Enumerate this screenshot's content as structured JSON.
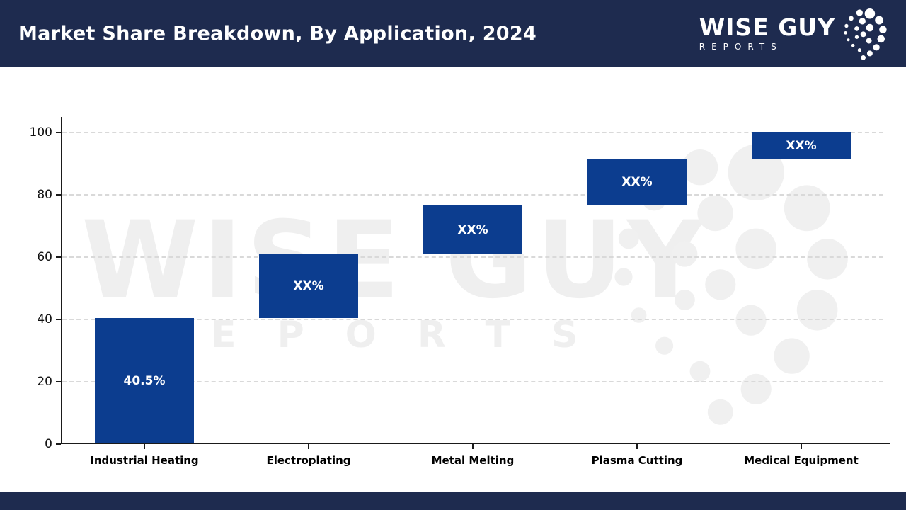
{
  "header": {
    "title": "Market Share Breakdown, By Application, 2024",
    "logo": {
      "line1": "WISE GUY",
      "line2": "REPORTS"
    }
  },
  "watermark": {
    "line1": "WISE GUY",
    "line2": "REPORTS"
  },
  "colors": {
    "navy": "#1e2b4f",
    "bar-blue": "#0c3d8f",
    "grid": "#d9d9d9",
    "axis": "#1a1a1a",
    "watermark-gray": "#efefef",
    "bar-label": "#ffffff"
  },
  "chart_data": {
    "type": "bar",
    "subtype": "waterfall",
    "title": "Market Share Breakdown, By Application, 2024",
    "categories": [
      "Industrial Heating",
      "Electroplating",
      "Metal Melting",
      "Plasma Cutting",
      "Medical Equipment"
    ],
    "segments": [
      {
        "category": "Industrial Heating",
        "start": 0,
        "end": 40.5,
        "label": "40.5%"
      },
      {
        "category": "Electroplating",
        "start": 40.5,
        "end": 61,
        "label": "XX%"
      },
      {
        "category": "Metal Melting",
        "start": 61,
        "end": 76.5,
        "label": "XX%"
      },
      {
        "category": "Plasma Cutting",
        "start": 76.5,
        "end": 91.5,
        "label": "XX%"
      },
      {
        "category": "Medical Equipment",
        "start": 91.5,
        "end": 100,
        "label": "XX%"
      }
    ],
    "ylim": [
      0,
      100
    ],
    "yticks": [
      0,
      20,
      40,
      60,
      80,
      100
    ],
    "xlabel": "",
    "ylabel": "",
    "grid": "horizontal-dashed",
    "legend": "none"
  }
}
